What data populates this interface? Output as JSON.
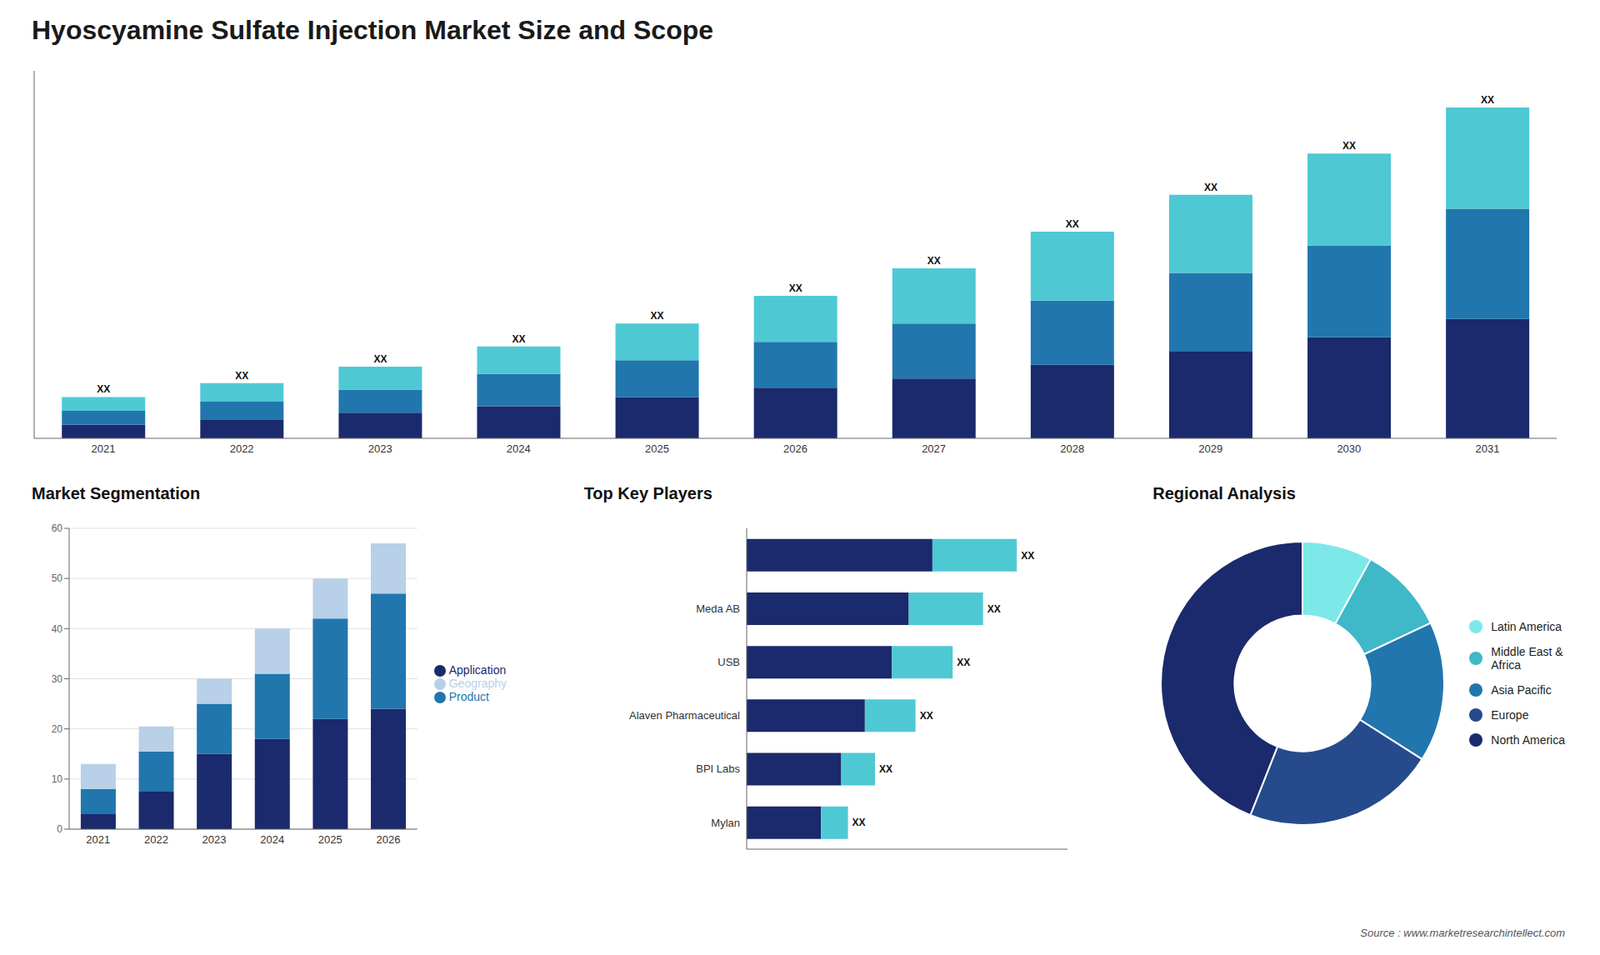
{
  "chart_data": [
    {
      "type": "bar",
      "title": "Hyoscyamine Sulfate Injection Market Size and Scope",
      "categories": [
        "2021",
        "2022",
        "2023",
        "2024",
        "2025",
        "2026",
        "2027",
        "2028",
        "2029",
        "2030",
        "2031"
      ],
      "series": [
        {
          "color": "#1a2a6c",
          "values": [
            1.5,
            2.0,
            2.8,
            3.5,
            4.5,
            5.5,
            6.5,
            8.0,
            9.5,
            11.0,
            13.0
          ]
        },
        {
          "color": "#2176ae",
          "values": [
            1.5,
            2.0,
            2.5,
            3.5,
            4.0,
            5.0,
            6.0,
            7.0,
            8.5,
            10.0,
            12.0
          ]
        },
        {
          "color": "#4ec9d4",
          "values": [
            1.5,
            2.0,
            2.5,
            3.0,
            4.0,
            5.0,
            6.0,
            7.5,
            8.5,
            10.0,
            11.0
          ]
        }
      ],
      "stacked": true,
      "ylim": [
        0,
        40
      ],
      "tick_labels": "x",
      "annotations": [
        "XX",
        "XX",
        "XX",
        "XX",
        "XX",
        "XX",
        "XX",
        "XX",
        "XX",
        "XX",
        "XX"
      ]
    },
    {
      "type": "bar",
      "title": "Market Segmentation",
      "categories": [
        "2021",
        "2022",
        "2023",
        "2024",
        "2025",
        "2026"
      ],
      "series": [
        {
          "name": "Application",
          "color": "#1a2a6c",
          "values": [
            3,
            7.5,
            15,
            18,
            22,
            24
          ]
        },
        {
          "name": "Product",
          "color": "#2176ae",
          "values": [
            5,
            8,
            10,
            13,
            20,
            23
          ]
        },
        {
          "name": "Geography",
          "color": "#b8d0e8",
          "values": [
            5,
            5,
            5,
            9,
            8,
            10
          ]
        }
      ],
      "stacked": true,
      "ylim": [
        0,
        60
      ],
      "yticks": [
        0,
        10,
        20,
        30,
        40,
        50,
        60
      ],
      "grid": true,
      "legend": "right"
    },
    {
      "type": "bar",
      "title": "Top Key Players",
      "orientation": "horizontal",
      "categories": [
        null,
        "Meda AB",
        "USB",
        "Alaven Pharmaceutical",
        "BPI Labs",
        "Mylan"
      ],
      "series": [
        {
          "color": "#1a2a6c",
          "values": [
            55,
            48,
            43,
            35,
            28,
            22
          ]
        },
        {
          "color": "#4ec9d4",
          "values": [
            25,
            22,
            18,
            15,
            10,
            8
          ]
        }
      ],
      "stacked": true,
      "xlim": [
        0,
        95
      ],
      "tick_labels": "y",
      "annotations": [
        "XX",
        "XX",
        "XX",
        "XX",
        "XX",
        "XX"
      ]
    },
    {
      "type": "donut",
      "title": "Regional Analysis",
      "categories": [
        "Latin America",
        "Middle East &\nAfrica",
        "Asia Pacific",
        "Europe",
        "North America"
      ],
      "values": [
        8,
        10,
        16,
        22,
        44
      ],
      "colors": [
        "#7de8e8",
        "#3fb8c8",
        "#2176ae",
        "#264b8c",
        "#1a2a6c"
      ],
      "legend": "right",
      "annotations": [
        "Source : www.marketresearchintellect.com"
      ]
    }
  ]
}
